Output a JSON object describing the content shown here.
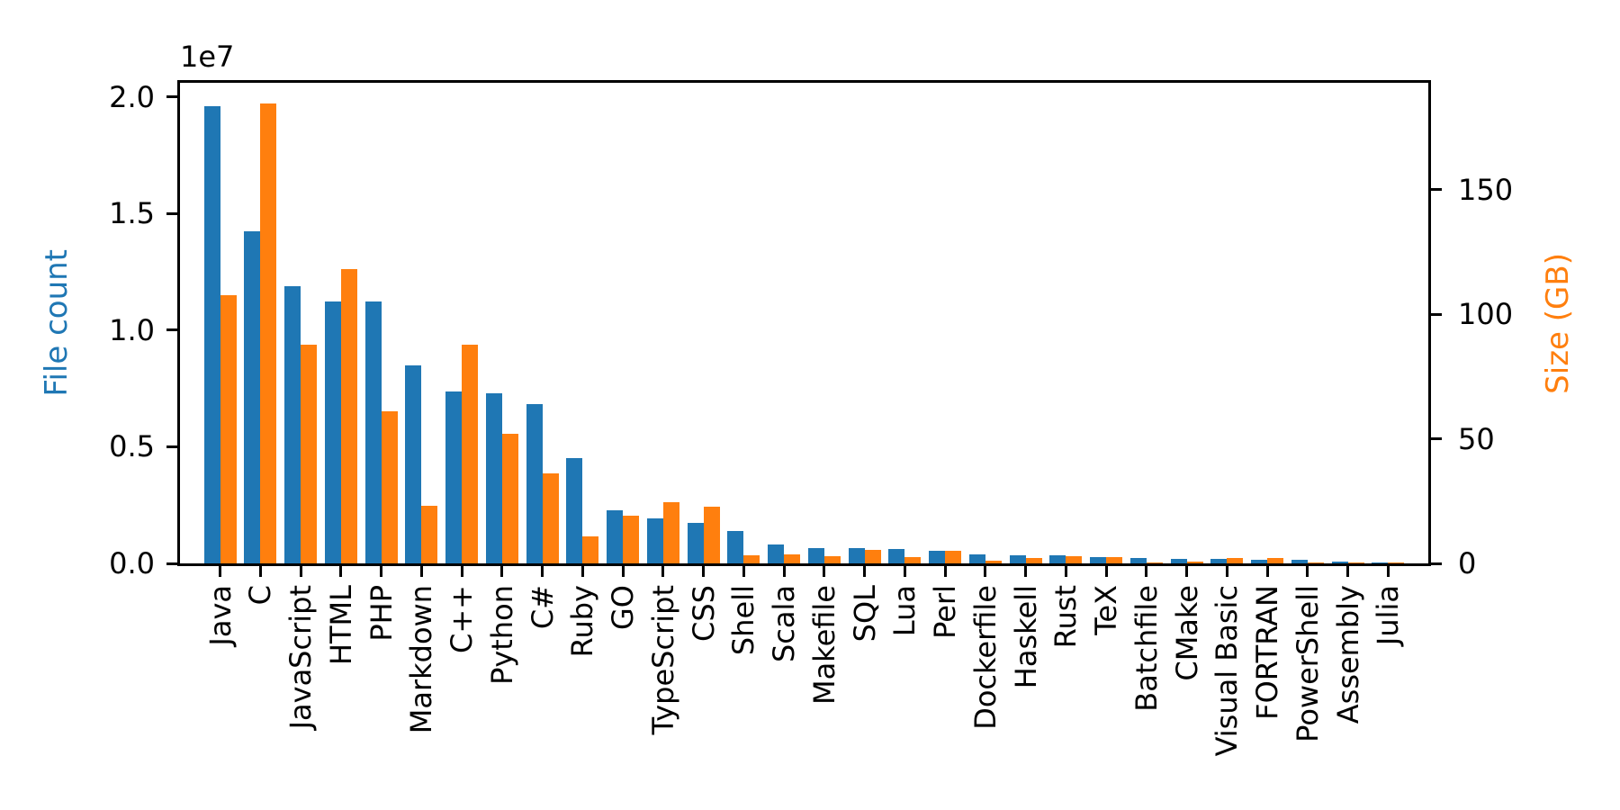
{
  "figure": {
    "background": "#ffffff"
  },
  "chart_data": {
    "type": "bar",
    "title": "",
    "grid": false,
    "legend": "none",
    "x_tick_rotation": 90,
    "categories": [
      "Java",
      "C",
      "JavaScript",
      "HTML",
      "PHP",
      "Markdown",
      "C++",
      "Python",
      "C#",
      "Ruby",
      "GO",
      "TypeScript",
      "CSS",
      "Shell",
      "Scala",
      "Makefile",
      "SQL",
      "Lua",
      "Perl",
      "Dockerfile",
      "Haskell",
      "Rust",
      "TeX",
      "Batchfile",
      "CMake",
      "Visual Basic",
      "FORTRAN",
      "PowerShell",
      "Assembly",
      "Julia"
    ],
    "series": [
      {
        "name": "File count",
        "axis": "left",
        "color": "#1f77b4",
        "values": [
          19600000,
          14230000,
          11880000,
          11230000,
          11230000,
          8500000,
          7380000,
          7310000,
          6850000,
          4500000,
          2270000,
          1920000,
          1730000,
          1380000,
          810000,
          650000,
          650000,
          620000,
          540000,
          380000,
          350000,
          350000,
          270000,
          230000,
          190000,
          190000,
          150000,
          150000,
          80000,
          40000
        ]
      },
      {
        "name": "Size (GB)",
        "axis": "right",
        "color": "#ff7f0e",
        "values": [
          107.5,
          184.5,
          87.7,
          117.9,
          61.0,
          23.0,
          87.7,
          52.0,
          36.2,
          10.8,
          19.0,
          24.4,
          22.6,
          3.2,
          3.6,
          2.9,
          5.4,
          2.5,
          5.2,
          1.1,
          2.2,
          2.9,
          2.5,
          0.5,
          0.7,
          2.2,
          2.2,
          0.5,
          0.4,
          0.2
        ]
      }
    ],
    "left_axis": {
      "label": "File count",
      "color": "#1f77b4",
      "offset_text": "1e7",
      "ticks": [
        0,
        5000000,
        10000000,
        15000000,
        20000000
      ],
      "tick_labels": [
        "0.0",
        "0.5",
        "1.0",
        "1.5",
        "2.0"
      ],
      "max": 20615000
    },
    "right_axis": {
      "label": "Size (GB)",
      "color": "#ff7f0e",
      "ticks": [
        0,
        50,
        100,
        150
      ],
      "tick_labels": [
        "0",
        "50",
        "100",
        "150"
      ],
      "max": 192.8
    }
  }
}
